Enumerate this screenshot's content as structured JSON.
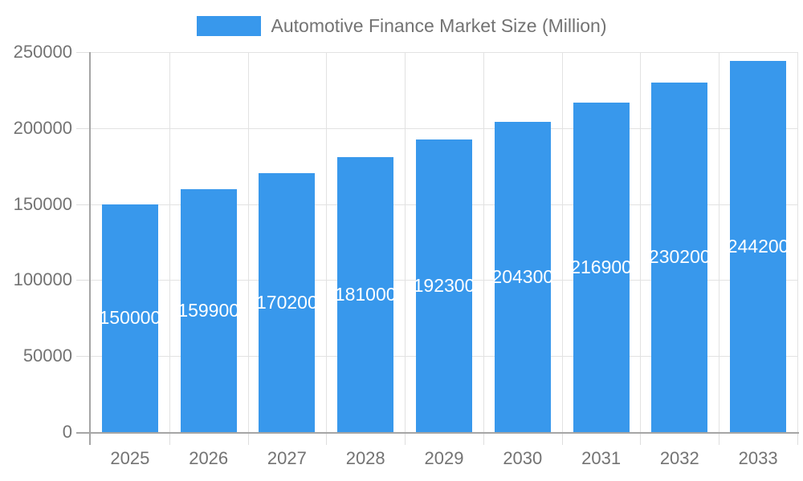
{
  "legend": {
    "label": "Automotive Finance Market Size (Million)"
  },
  "colors": {
    "bar": "#3898EC",
    "bar_value_text": "#FFFFFF",
    "axis_line": "#A5A5A5",
    "gridline": "#E2E2E2",
    "tick": "#DEDEDE",
    "axis_text": "#737373",
    "background": "#FFFFFF"
  },
  "chart_data": {
    "type": "bar",
    "title": "Automotive Finance Market Size (Million)",
    "series_name": "Automotive Finance Market Size (Million)",
    "categories": [
      "2025",
      "2026",
      "2027",
      "2028",
      "2029",
      "2030",
      "2031",
      "2032",
      "2033"
    ],
    "values": [
      150000,
      159900,
      170200,
      181000,
      192300,
      204300,
      216900,
      230200,
      244200
    ],
    "bar_labels": [
      "150000",
      "159900",
      "170200",
      "181000",
      "192300",
      "204300",
      "216900",
      "230200",
      "244200"
    ],
    "xlabel": "",
    "ylabel": "",
    "ylim": [
      0,
      250000
    ],
    "yticks": [
      0,
      50000,
      100000,
      150000,
      200000,
      250000
    ],
    "ytick_labels": [
      "0",
      "50000",
      "100000",
      "150000",
      "200000",
      "250000"
    ],
    "grid": true,
    "legend_position": "top",
    "value_label_position": "inside-center"
  }
}
